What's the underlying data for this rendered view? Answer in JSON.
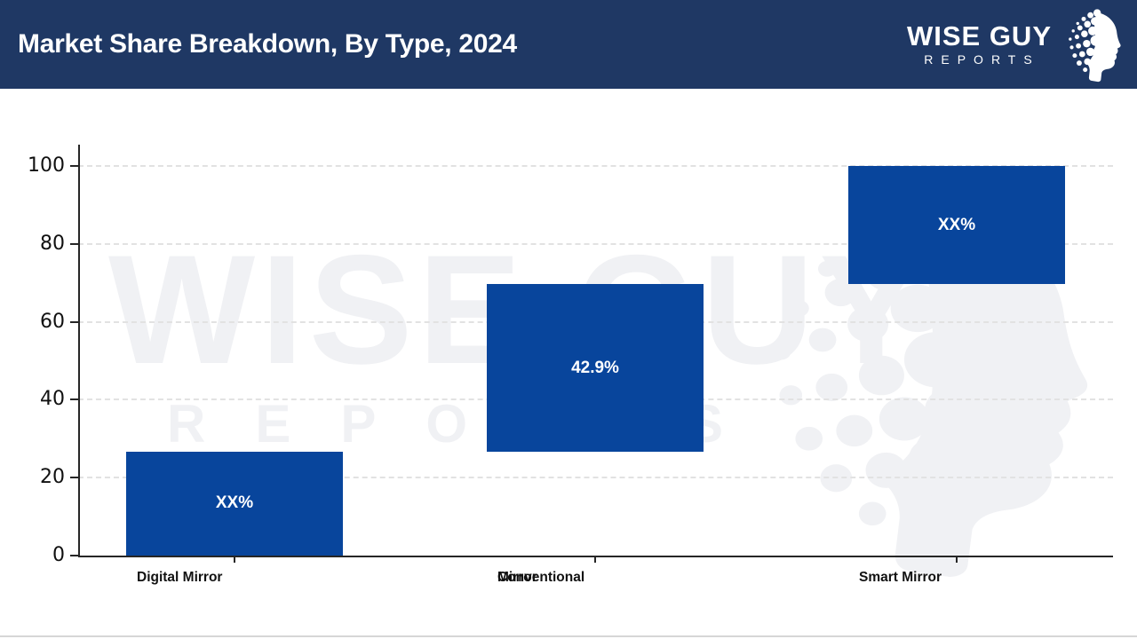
{
  "header": {
    "title": "Market Share Breakdown, By Type, 2024",
    "logo": {
      "line1": "WISE GUY",
      "line2": "REPORTS"
    }
  },
  "watermark": {
    "line1": "WISE GUY",
    "line2": "REPORTS"
  },
  "chart_data": {
    "type": "bar",
    "variant": "floating-stacked-percentage",
    "title": "Market Share Breakdown, By Type, 2024",
    "categories": [
      "Digital Mirror",
      "Conventional Mirror",
      "Smart Mirror"
    ],
    "category_lines": [
      [
        "Digital Mirror"
      ],
      [
        "Conventional",
        "Mirror"
      ],
      [
        "Smart Mirror"
      ]
    ],
    "bars": [
      {
        "category": "Digital Mirror",
        "start": 0,
        "end": 26.7,
        "value": 26.7,
        "label": "XX%"
      },
      {
        "category": "Conventional Mirror",
        "start": 26.7,
        "end": 69.6,
        "value": 42.9,
        "label": "42.9%"
      },
      {
        "category": "Smart Mirror",
        "start": 69.6,
        "end": 100,
        "value": 30.4,
        "label": "XX%"
      }
    ],
    "xlabel": "",
    "ylabel": "",
    "ylim": [
      0,
      100
    ],
    "yticks": [
      0,
      20,
      40,
      60,
      80,
      100
    ],
    "grid": "horizontal-dashed",
    "legend": "none",
    "bar_color": "#08459c",
    "bar_label_color": "#ffffff"
  },
  "colors": {
    "header_bg": "#1f3864",
    "header_text": "#ffffff",
    "bar": "#08459c",
    "watermark": "#f0f1f4",
    "gridline": "#e2e2e2",
    "axis": "#262626",
    "bottom_rule": "#d6d6d6"
  }
}
